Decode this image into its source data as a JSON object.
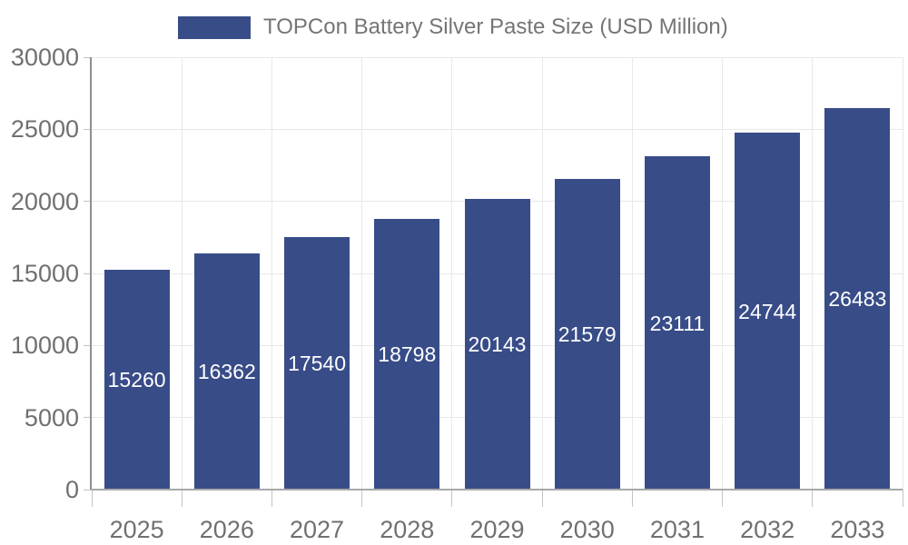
{
  "legend": {
    "label": "TOPCon Battery Silver Paste Size (USD Million)",
    "swatch_color": "#384C88"
  },
  "chart_data": {
    "type": "bar",
    "title": "TOPCon Battery Silver Paste Size (USD Million)",
    "categories": [
      "2025",
      "2026",
      "2027",
      "2028",
      "2029",
      "2030",
      "2031",
      "2032",
      "2033"
    ],
    "values": [
      15260,
      16362,
      17540,
      18798,
      20143,
      21579,
      23111,
      24744,
      26483
    ],
    "xlabel": "",
    "ylabel": "",
    "ylim": [
      0,
      30000
    ],
    "yticks": [
      0,
      5000,
      10000,
      15000,
      20000,
      25000,
      30000
    ],
    "grid": true,
    "legend_position": "top",
    "bar_label_position": "inside-center",
    "bar_color": "#384C88",
    "bar_label_color": "#FFFFFF",
    "axis_label_color": "#707070",
    "gridline_color": "#E8E8E8",
    "x_axis_line_color": "#A8A8A8",
    "y_axis_line_color": "#8F8F8F",
    "tick_color": "#C4C4C4"
  }
}
